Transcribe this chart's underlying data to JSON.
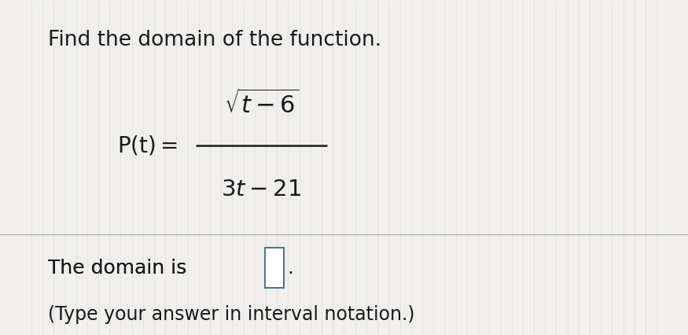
{
  "background_color": "#f0efed",
  "grid_color": "#c8c8c8",
  "title_text": "Find the domain of the function.",
  "title_fontsize": 19,
  "text_color": "#1a1a1a",
  "box_edge_color": "#4a7a8a",
  "separator_color": "#aaaaaa",
  "font_family": "DejaVu Sans",
  "fs_body": 18,
  "fs_math": 20
}
